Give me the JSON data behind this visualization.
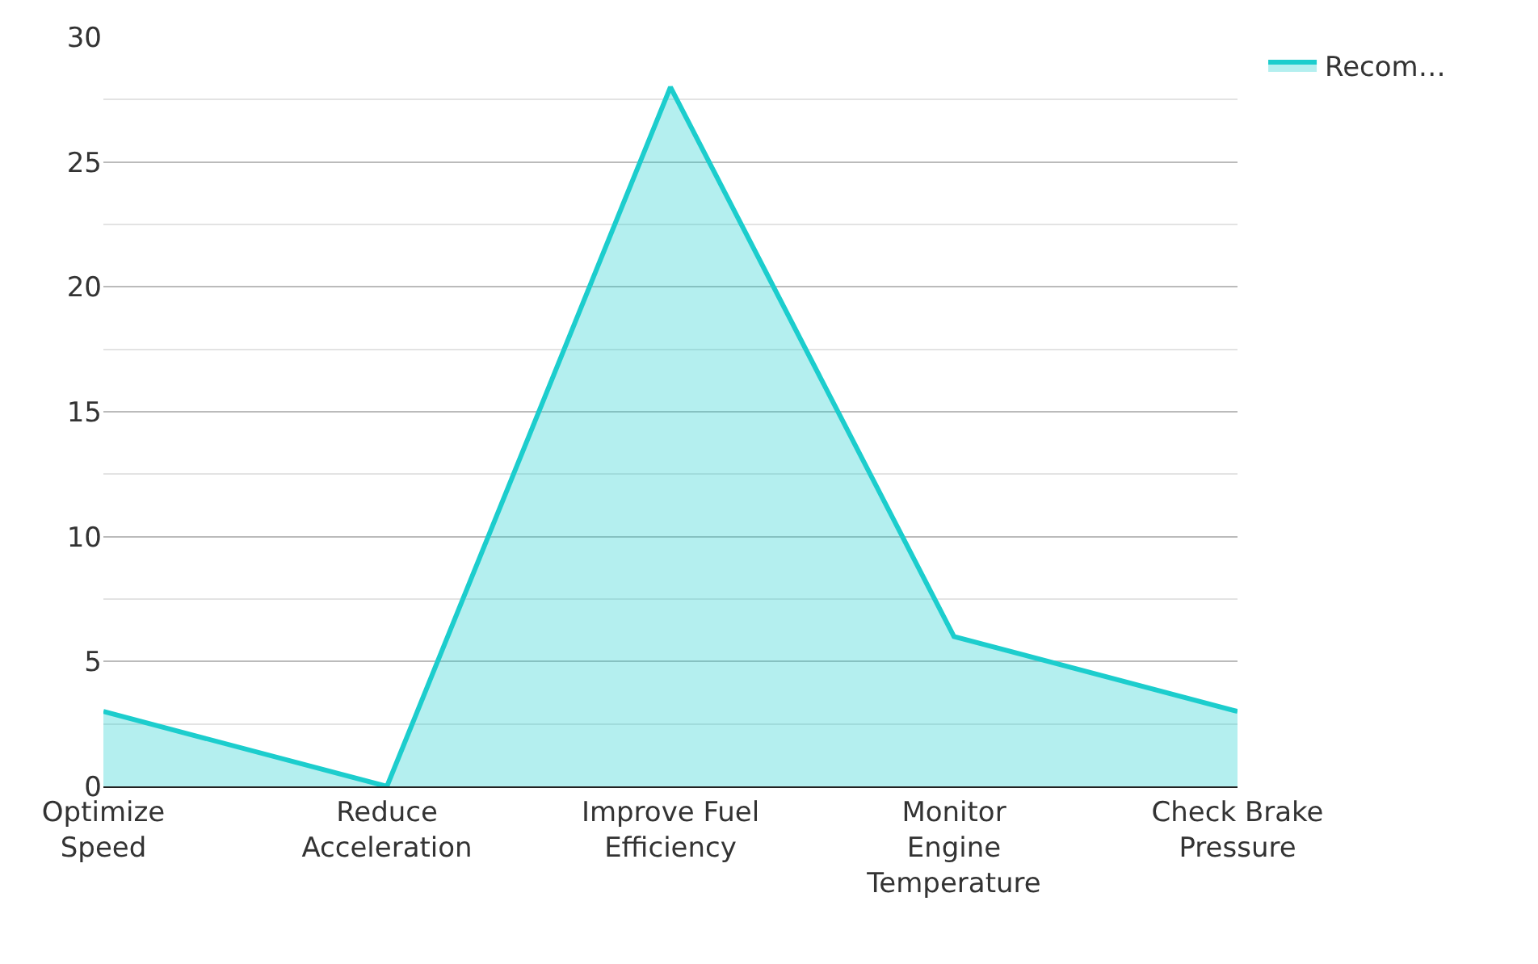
{
  "chart_data": {
    "type": "area",
    "categories": [
      "Optimize Speed",
      "Reduce Acceleration",
      "Improve Fuel Efficiency",
      "Monitor Engine Temperature",
      "Check Brake Pressure"
    ],
    "series": [
      {
        "name": "Recom…",
        "color": "#1ccdcd",
        "values": [
          3,
          0,
          28,
          6,
          3
        ]
      }
    ],
    "ylim": [
      0,
      30
    ],
    "yticks": [
      0,
      5,
      10,
      15,
      20,
      25,
      30
    ],
    "grid": "y",
    "legend": "top right",
    "marker": "none",
    "line_style": "solid"
  }
}
